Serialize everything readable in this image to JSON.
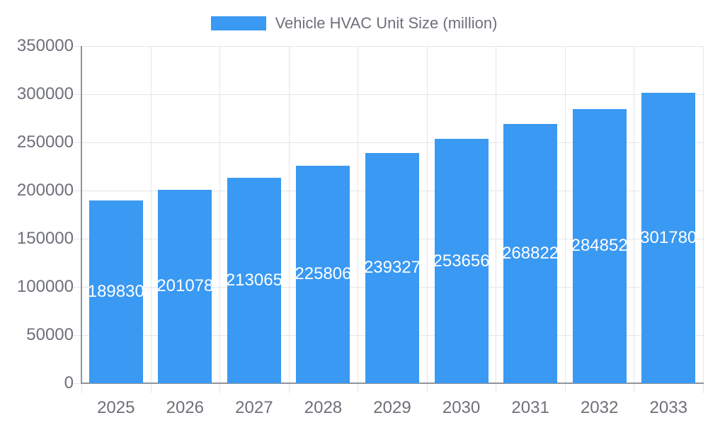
{
  "legend": {
    "items": [
      {
        "label": "Vehicle HVAC Unit Size (million)",
        "color": "#3A99F2"
      }
    ]
  },
  "chart_data": {
    "type": "bar",
    "title": "Vehicle HVAC Unit Size (million)",
    "categories": [
      "2025",
      "2026",
      "2027",
      "2028",
      "2029",
      "2030",
      "2031",
      "2032",
      "2033"
    ],
    "series": [
      {
        "name": "Vehicle HVAC Unit Size (million)",
        "values": [
          189830,
          201078,
          213065,
          225806,
          239327,
          253656,
          268822,
          284852,
          301780
        ]
      }
    ],
    "bar_labels": [
      "189830",
      "201078",
      "213065",
      "225806",
      "239327",
      "253656",
      "268822",
      "284852",
      "301780"
    ],
    "xlabel": "",
    "ylabel": "",
    "ylim": [
      0,
      350000
    ],
    "ytick_step": 50000,
    "ytick_labels": [
      "0",
      "50000",
      "100000",
      "150000",
      "200000",
      "250000",
      "300000",
      "350000"
    ],
    "grid": true,
    "legend_position": "top",
    "colors": {
      "bar": "#3A99F2",
      "bar_label": "#FFFFFF",
      "axis_label": "#6E7079",
      "axis_line": "#909498",
      "gridline": "#E2E5EA",
      "background": "#FFFFFF"
    }
  }
}
